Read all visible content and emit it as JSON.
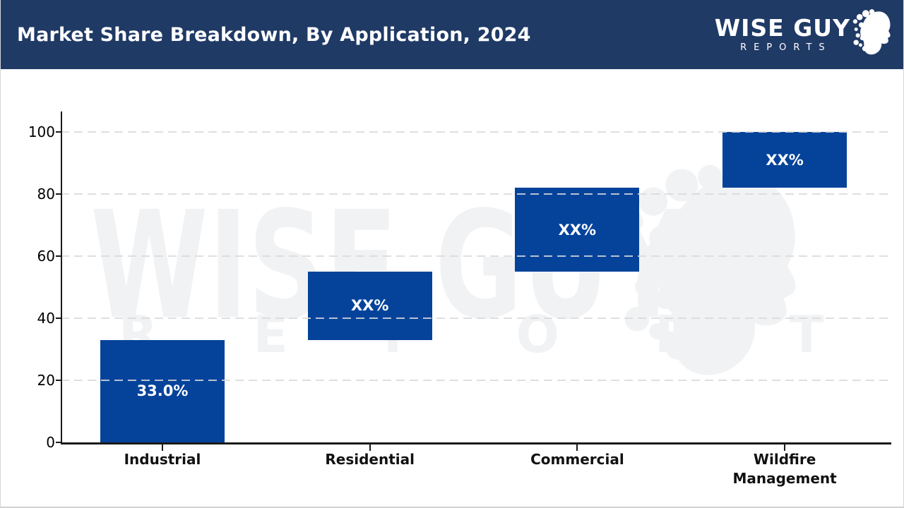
{
  "header": {
    "title": "Market Share Breakdown, By Application, 2024",
    "logo": {
      "line1": "WISE GUY",
      "line2": "REPORTS"
    }
  },
  "watermark": {
    "line1": "WISE GUY",
    "line2": "REPORTS"
  },
  "chart_data": {
    "type": "bar",
    "subtype": "waterfall",
    "title": "Market Share Breakdown, By Application, 2024",
    "categories": [
      "Industrial",
      "Residential",
      "Commercial",
      "Wildfire Management"
    ],
    "series": [
      {
        "name": "Market Share",
        "segments": [
          [
            0,
            33
          ],
          [
            33,
            55
          ],
          [
            55,
            82
          ],
          [
            82,
            100
          ]
        ],
        "bar_labels": [
          "33.0%",
          "XX%",
          "XX%",
          "XX%"
        ]
      }
    ],
    "xlabel": "",
    "ylabel": "",
    "ylim": [
      0,
      100
    ],
    "yticks": [
      0,
      20,
      40,
      60,
      80,
      100
    ],
    "grid": "horizontal-dashed",
    "legend": "none"
  },
  "colors": {
    "header_bg": "#203A66",
    "bar": "#05439B",
    "bar_label": "#ffffff",
    "grid": "#d9d9d9",
    "axis": "#1a1a1a",
    "watermark": "#f1f2f4"
  }
}
